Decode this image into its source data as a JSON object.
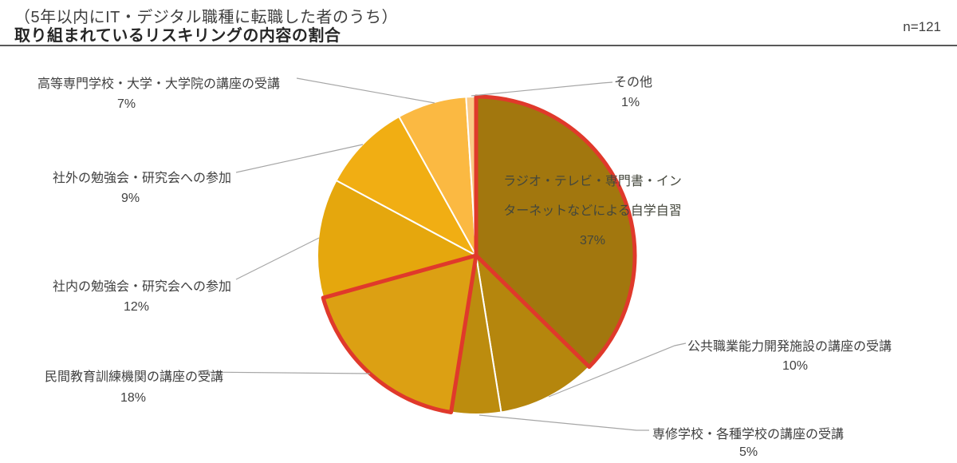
{
  "header": {
    "subtitle": "（5年以内にIT・デジタル職種に転職した者のうち）",
    "title": "取り組まれているリスキリングの内容の割合",
    "sample_size": "n=121"
  },
  "chart_data": {
    "type": "pie",
    "title": "取り組まれているリスキリングの内容の割合",
    "subtitle": "（5年以内にIT・デジタル職種に転職した者のうち）",
    "sample_size": "n=121",
    "start_angle_deg": 0,
    "direction": "clockwise",
    "legend_position": "none",
    "highlight_color": "#E0392B",
    "slice_border_color": "#FFFFFF",
    "leader_line_color": "#A6A6A6",
    "slices": [
      {
        "label": "ラジオ・テレビ・専門書・インターネットなどによる自学自習",
        "label_line1": "ラジオ・テレビ・専門書・イン",
        "label_line2": "ターネットなどによる自学自習",
        "value": 37,
        "pct_label": "37%",
        "color": "#A2770E",
        "highlighted": true
      },
      {
        "label": "公共職業能力開発施設の講座の受講",
        "value": 10,
        "pct_label": "10%",
        "color": "#B5860D",
        "highlighted": false
      },
      {
        "label": "専修学校・各種学校の講座の受講",
        "value": 5,
        "pct_label": "5%",
        "color": "#BC8C0E",
        "highlighted": false
      },
      {
        "label": "民間教育訓練機関の講座の受講",
        "value": 18,
        "pct_label": "18%",
        "color": "#DCA013",
        "highlighted": true
      },
      {
        "label": "社内の勉強会・研究会への参加",
        "value": 12,
        "pct_label": "12%",
        "color": "#E5A70D",
        "highlighted": false
      },
      {
        "label": "社外の勉強会・研究会への参加",
        "value": 9,
        "pct_label": "9%",
        "color": "#F1AE13",
        "highlighted": false
      },
      {
        "label": "高等専門学校・大学・大学院の講座の受講",
        "value": 7,
        "pct_label": "7%",
        "color": "#FBB942",
        "highlighted": false
      },
      {
        "label": "その他",
        "value": 1,
        "pct_label": "1%",
        "color": "#FACA86",
        "highlighted": false
      }
    ]
  }
}
